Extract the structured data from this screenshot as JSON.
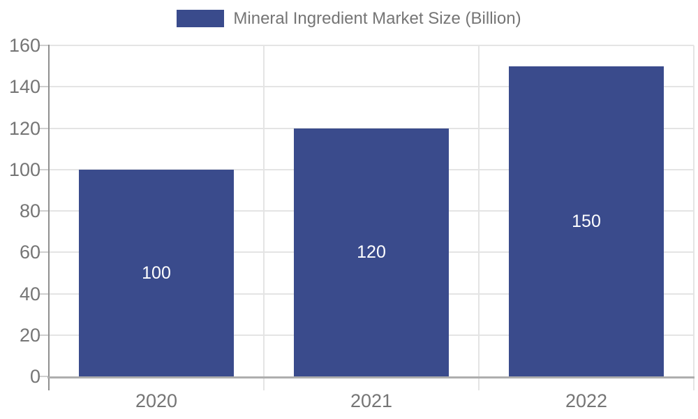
{
  "legend": {
    "label": "Mineral Ingredient Market Size (Billion)"
  },
  "chart_data": {
    "type": "bar",
    "title": "Mineral Ingredient Market Size (Billion)",
    "categories": [
      "2020",
      "2021",
      "2022"
    ],
    "values": [
      100,
      120,
      150
    ],
    "value_labels": [
      "100",
      "120",
      "150"
    ],
    "xlabel": "",
    "ylabel": "",
    "ylim": [
      0,
      160
    ],
    "ytick_step": 20,
    "yticks": [
      0,
      20,
      40,
      60,
      80,
      100,
      120,
      140,
      160
    ],
    "grid": true,
    "legend_position": "top-center",
    "value_label_position": "inside-center"
  },
  "colors": {
    "bar": "#3A4B8C",
    "tick_text": "#757575",
    "legend_text": "#757575",
    "value_text": "#ffffff",
    "gridline": "#e4e4e4",
    "axis_left": "#8f8f8f",
    "axis_bottom": "#aeaeae",
    "tick_mark": "#cfcfcf",
    "background": "#ffffff"
  }
}
